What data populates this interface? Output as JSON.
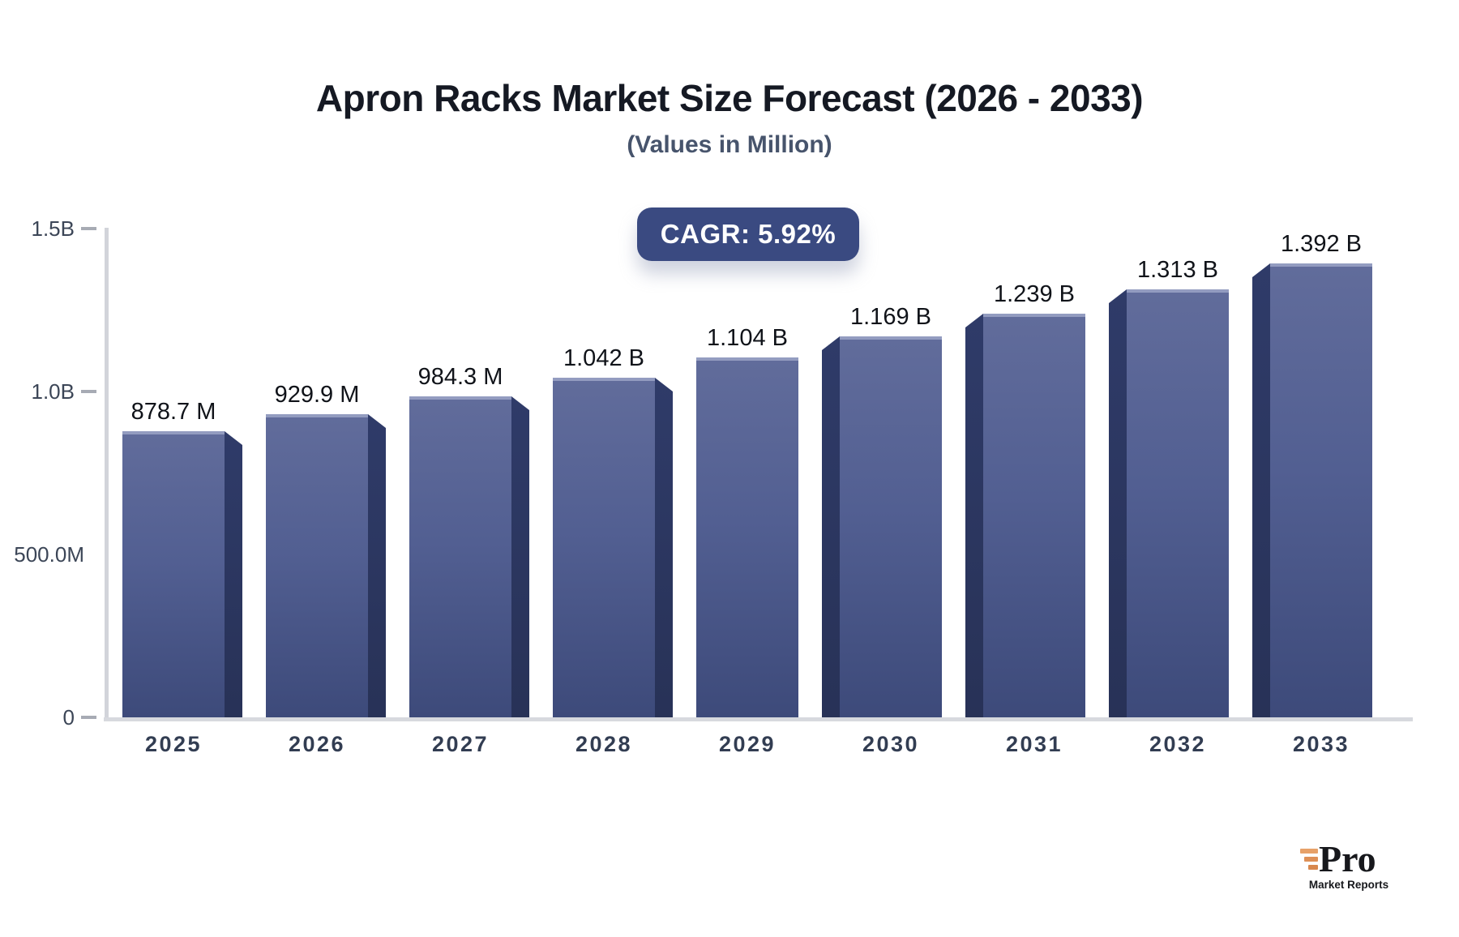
{
  "header": {
    "title": "Apron Racks Market Size Forecast (2026 - 2033)",
    "subtitle": "(Values in Million)",
    "cagr_label": "CAGR: 5.92%"
  },
  "chart_data": {
    "type": "bar",
    "title": "Apron Racks Market Size Forecast (2026 - 2033)",
    "subtitle": "(Values in Million)",
    "annotation": "CAGR: 5.92%",
    "categories": [
      "2025",
      "2026",
      "2027",
      "2028",
      "2029",
      "2030",
      "2031",
      "2032",
      "2033"
    ],
    "values_millions": [
      878.7,
      929.9,
      984.3,
      1042,
      1104,
      1169,
      1239,
      1313,
      1392
    ],
    "value_labels": [
      "878.7 M",
      "929.9 M",
      "984.3 M",
      "1.042 B",
      "1.104 B",
      "1.169 B",
      "1.239 B",
      "1.313 B",
      "1.392 B"
    ],
    "xlabel": "",
    "ylabel": "",
    "ylim_millions": [
      0,
      1500
    ],
    "grid": false,
    "legend": false,
    "bar_style": "3d-bevel",
    "yticks": [
      {
        "label": "1.5B",
        "millions": 1500,
        "dash": true
      },
      {
        "label": "1.0B",
        "millions": 1000,
        "dash": true
      },
      {
        "label": "500.0M",
        "millions": 500,
        "dash": false
      },
      {
        "label": "0",
        "millions": 0,
        "dash": true
      }
    ]
  },
  "colors": {
    "bar_top": "#616c9b",
    "bar_bottom": "#3d4a7a",
    "bar_side": "#2c3663",
    "bar_highlight": "#939cc0",
    "badge_bg": "#3a4a81",
    "badge_text": "#ffffff",
    "axis_line": "#d2d4da",
    "title_text": "#151923",
    "subtitle_text": "#47546c",
    "logo_accent": "#e0935c"
  },
  "logo": {
    "name": "Pro",
    "tagline": "Market Reports",
    "bar_colors": [
      "#e7a169",
      "#de9057",
      "#d8884e"
    ]
  }
}
